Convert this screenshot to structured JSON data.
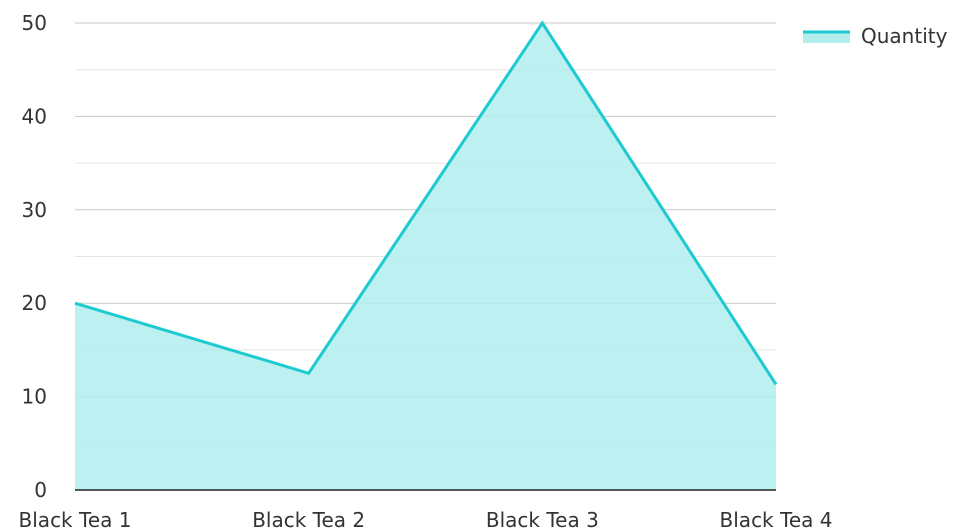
{
  "chart_data": {
    "type": "area",
    "categories": [
      "Black Tea 1",
      "Black Tea 2",
      "Black Tea 3",
      "Black Tea 4"
    ],
    "series": [
      {
        "name": "Quantity",
        "values": [
          20,
          12.5,
          50,
          11.3
        ]
      }
    ],
    "ylim": [
      0,
      50
    ],
    "y_ticks": [
      "0",
      "10",
      "20",
      "30",
      "40",
      "50"
    ],
    "grid": true,
    "legend": "top-right",
    "colors": {
      "line": "#1ccad0",
      "fill": "#b2eeee",
      "grid": "#c8c8c8",
      "axis": "#222222"
    }
  }
}
